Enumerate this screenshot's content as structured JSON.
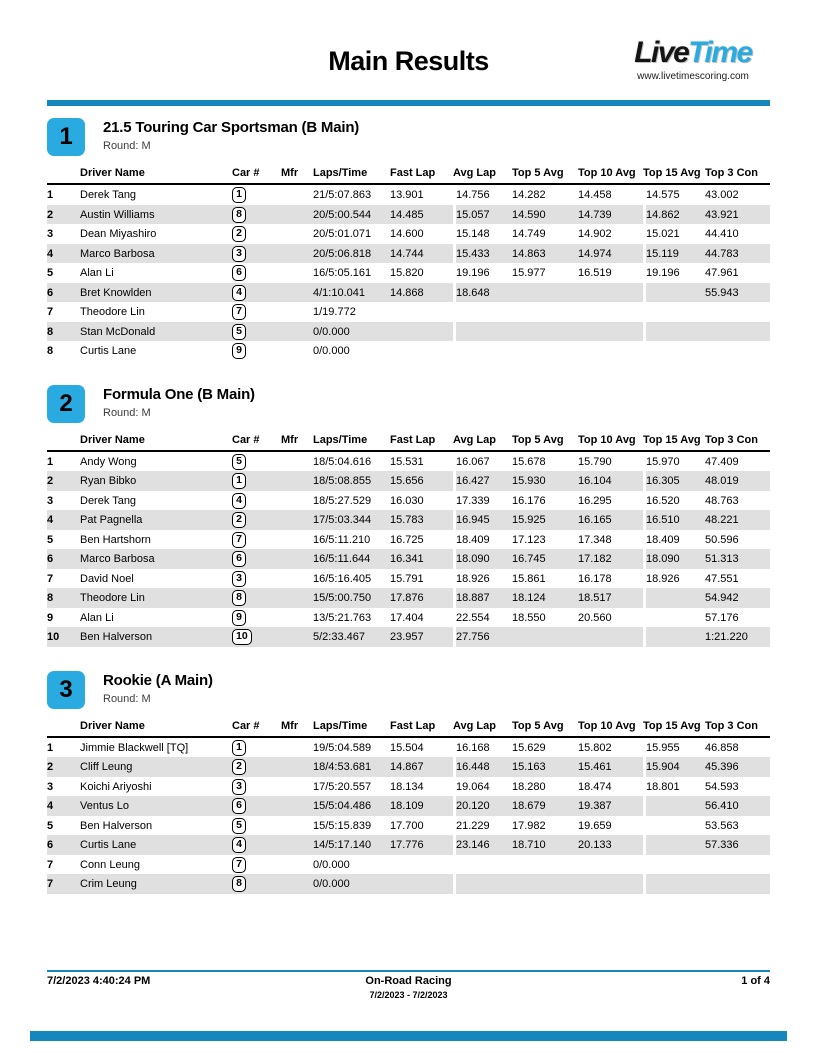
{
  "header": {
    "title": "Main Results",
    "logo_live": "Live",
    "logo_time": "Time",
    "logo_url": "www.livetimescoring.com"
  },
  "colors": {
    "accent_cyan": "#29abe2",
    "rule_blue": "#1687bd",
    "row_stripe": "#e0e0e0"
  },
  "table": {
    "columns": [
      "Driver Name",
      "Car #",
      "Mfr",
      "Laps/Time",
      "Fast Lap",
      "Avg Lap",
      "Top 5 Avg",
      "Top 10 Avg",
      "Top 15 Avg",
      "Top 3 Con"
    ]
  },
  "sections": [
    {
      "number": "1",
      "title": "21.5 Touring Car Sportsman (B Main)",
      "round": "Round: M",
      "rows": [
        {
          "rank": "1",
          "driver": "Derek Tang",
          "car": "1",
          "mfr": "",
          "laps_time": "21/5:07.863",
          "fast_lap": "13.901",
          "avg_lap": "14.756",
          "top5_avg": "14.282",
          "top10_avg": "14.458",
          "top15_avg": "14.575",
          "top3_con": "43.002"
        },
        {
          "rank": "2",
          "driver": "Austin Williams",
          "car": "8",
          "mfr": "",
          "laps_time": "20/5:00.544",
          "fast_lap": "14.485",
          "avg_lap": "15.057",
          "top5_avg": "14.590",
          "top10_avg": "14.739",
          "top15_avg": "14.862",
          "top3_con": "43.921"
        },
        {
          "rank": "3",
          "driver": "Dean Miyashiro",
          "car": "2",
          "mfr": "",
          "laps_time": "20/5:01.071",
          "fast_lap": "14.600",
          "avg_lap": "15.148",
          "top5_avg": "14.749",
          "top10_avg": "14.902",
          "top15_avg": "15.021",
          "top3_con": "44.410"
        },
        {
          "rank": "4",
          "driver": "Marco Barbosa",
          "car": "3",
          "mfr": "",
          "laps_time": "20/5:06.818",
          "fast_lap": "14.744",
          "avg_lap": "15.433",
          "top5_avg": "14.863",
          "top10_avg": "14.974",
          "top15_avg": "15.119",
          "top3_con": "44.783"
        },
        {
          "rank": "5",
          "driver": "Alan Li",
          "car": "6",
          "mfr": "",
          "laps_time": "16/5:05.161",
          "fast_lap": "15.820",
          "avg_lap": "19.196",
          "top5_avg": "15.977",
          "top10_avg": "16.519",
          "top15_avg": "19.196",
          "top3_con": "47.961"
        },
        {
          "rank": "6",
          "driver": "Bret Knowlden",
          "car": "4",
          "mfr": "",
          "laps_time": "4/1:10.041",
          "fast_lap": "14.868",
          "avg_lap": "18.648",
          "top5_avg": "",
          "top10_avg": "",
          "top15_avg": "",
          "top3_con": "55.943"
        },
        {
          "rank": "7",
          "driver": "Theodore Lin",
          "car": "7",
          "mfr": "",
          "laps_time": "1/19.772",
          "fast_lap": "",
          "avg_lap": "",
          "top5_avg": "",
          "top10_avg": "",
          "top15_avg": "",
          "top3_con": ""
        },
        {
          "rank": "8",
          "driver": "Stan McDonald",
          "car": "5",
          "mfr": "",
          "laps_time": "0/0.000",
          "fast_lap": "",
          "avg_lap": "",
          "top5_avg": "",
          "top10_avg": "",
          "top15_avg": "",
          "top3_con": ""
        },
        {
          "rank": "8",
          "driver": "Curtis Lane",
          "car": "9",
          "mfr": "",
          "laps_time": "0/0.000",
          "fast_lap": "",
          "avg_lap": "",
          "top5_avg": "",
          "top10_avg": "",
          "top15_avg": "",
          "top3_con": ""
        }
      ]
    },
    {
      "number": "2",
      "title": "Formula One (B Main)",
      "round": "Round: M",
      "rows": [
        {
          "rank": "1",
          "driver": "Andy Wong",
          "car": "5",
          "mfr": "",
          "laps_time": "18/5:04.616",
          "fast_lap": "15.531",
          "avg_lap": "16.067",
          "top5_avg": "15.678",
          "top10_avg": "15.790",
          "top15_avg": "15.970",
          "top3_con": "47.409"
        },
        {
          "rank": "2",
          "driver": "Ryan Bibko",
          "car": "1",
          "mfr": "",
          "laps_time": "18/5:08.855",
          "fast_lap": "15.656",
          "avg_lap": "16.427",
          "top5_avg": "15.930",
          "top10_avg": "16.104",
          "top15_avg": "16.305",
          "top3_con": "48.019"
        },
        {
          "rank": "3",
          "driver": "Derek Tang",
          "car": "4",
          "mfr": "",
          "laps_time": "18/5:27.529",
          "fast_lap": "16.030",
          "avg_lap": "17.339",
          "top5_avg": "16.176",
          "top10_avg": "16.295",
          "top15_avg": "16.520",
          "top3_con": "48.763"
        },
        {
          "rank": "4",
          "driver": "Pat Pagnella",
          "car": "2",
          "mfr": "",
          "laps_time": "17/5:03.344",
          "fast_lap": "15.783",
          "avg_lap": "16.945",
          "top5_avg": "15.925",
          "top10_avg": "16.165",
          "top15_avg": "16.510",
          "top3_con": "48.221"
        },
        {
          "rank": "5",
          "driver": "Ben Hartshorn",
          "car": "7",
          "mfr": "",
          "laps_time": "16/5:11.210",
          "fast_lap": "16.725",
          "avg_lap": "18.409",
          "top5_avg": "17.123",
          "top10_avg": "17.348",
          "top15_avg": "18.409",
          "top3_con": "50.596"
        },
        {
          "rank": "6",
          "driver": "Marco Barbosa",
          "car": "6",
          "mfr": "",
          "laps_time": "16/5:11.644",
          "fast_lap": "16.341",
          "avg_lap": "18.090",
          "top5_avg": "16.745",
          "top10_avg": "17.182",
          "top15_avg": "18.090",
          "top3_con": "51.313"
        },
        {
          "rank": "7",
          "driver": "David Noel",
          "car": "3",
          "mfr": "",
          "laps_time": "16/5:16.405",
          "fast_lap": "15.791",
          "avg_lap": "18.926",
          "top5_avg": "15.861",
          "top10_avg": "16.178",
          "top15_avg": "18.926",
          "top3_con": "47.551"
        },
        {
          "rank": "8",
          "driver": "Theodore Lin",
          "car": "8",
          "mfr": "",
          "laps_time": "15/5:00.750",
          "fast_lap": "17.876",
          "avg_lap": "18.887",
          "top5_avg": "18.124",
          "top10_avg": "18.517",
          "top15_avg": "",
          "top3_con": "54.942"
        },
        {
          "rank": "9",
          "driver": "Alan Li",
          "car": "9",
          "mfr": "",
          "laps_time": "13/5:21.763",
          "fast_lap": "17.404",
          "avg_lap": "22.554",
          "top5_avg": "18.550",
          "top10_avg": "20.560",
          "top15_avg": "",
          "top3_con": "57.176"
        },
        {
          "rank": "10",
          "driver": "Ben Halverson",
          "car": "10",
          "mfr": "",
          "laps_time": "5/2:33.467",
          "fast_lap": "23.957",
          "avg_lap": "27.756",
          "top5_avg": "",
          "top10_avg": "",
          "top15_avg": "",
          "top3_con": "1:21.220"
        }
      ]
    },
    {
      "number": "3",
      "title": "Rookie (A Main)",
      "round": "Round: M",
      "rows": [
        {
          "rank": "1",
          "driver": "Jimmie Blackwell [TQ]",
          "car": "1",
          "mfr": "",
          "laps_time": "19/5:04.589",
          "fast_lap": "15.504",
          "avg_lap": "16.168",
          "top5_avg": "15.629",
          "top10_avg": "15.802",
          "top15_avg": "15.955",
          "top3_con": "46.858"
        },
        {
          "rank": "2",
          "driver": "Cliff Leung",
          "car": "2",
          "mfr": "",
          "laps_time": "18/4:53.681",
          "fast_lap": "14.867",
          "avg_lap": "16.448",
          "top5_avg": "15.163",
          "top10_avg": "15.461",
          "top15_avg": "15.904",
          "top3_con": "45.396"
        },
        {
          "rank": "3",
          "driver": "Koichi Ariyoshi",
          "car": "3",
          "mfr": "",
          "laps_time": "17/5:20.557",
          "fast_lap": "18.134",
          "avg_lap": "19.064",
          "top5_avg": "18.280",
          "top10_avg": "18.474",
          "top15_avg": "18.801",
          "top3_con": "54.593"
        },
        {
          "rank": "4",
          "driver": "Ventus Lo",
          "car": "6",
          "mfr": "",
          "laps_time": "15/5:04.486",
          "fast_lap": "18.109",
          "avg_lap": "20.120",
          "top5_avg": "18.679",
          "top10_avg": "19.387",
          "top15_avg": "",
          "top3_con": "56.410"
        },
        {
          "rank": "5",
          "driver": "Ben Halverson",
          "car": "5",
          "mfr": "",
          "laps_time": "15/5:15.839",
          "fast_lap": "17.700",
          "avg_lap": "21.229",
          "top5_avg": "17.982",
          "top10_avg": "19.659",
          "top15_avg": "",
          "top3_con": "53.563"
        },
        {
          "rank": "6",
          "driver": "Curtis Lane",
          "car": "4",
          "mfr": "",
          "laps_time": "14/5:17.140",
          "fast_lap": "17.776",
          "avg_lap": "23.146",
          "top5_avg": "18.710",
          "top10_avg": "20.133",
          "top15_avg": "",
          "top3_con": "57.336"
        },
        {
          "rank": "7",
          "driver": "Conn Leung",
          "car": "7",
          "mfr": "",
          "laps_time": "0/0.000",
          "fast_lap": "",
          "avg_lap": "",
          "top5_avg": "",
          "top10_avg": "",
          "top15_avg": "",
          "top3_con": ""
        },
        {
          "rank": "7",
          "driver": "Crim Leung",
          "car": "8",
          "mfr": "",
          "laps_time": "0/0.000",
          "fast_lap": "",
          "avg_lap": "",
          "top5_avg": "",
          "top10_avg": "",
          "top15_avg": "",
          "top3_con": ""
        }
      ]
    }
  ],
  "footer": {
    "printed": "7/2/2023 4:40:24 PM",
    "event": "On-Road Racing",
    "dates": "7/2/2023 - 7/2/2023",
    "page": "1 of 4"
  }
}
